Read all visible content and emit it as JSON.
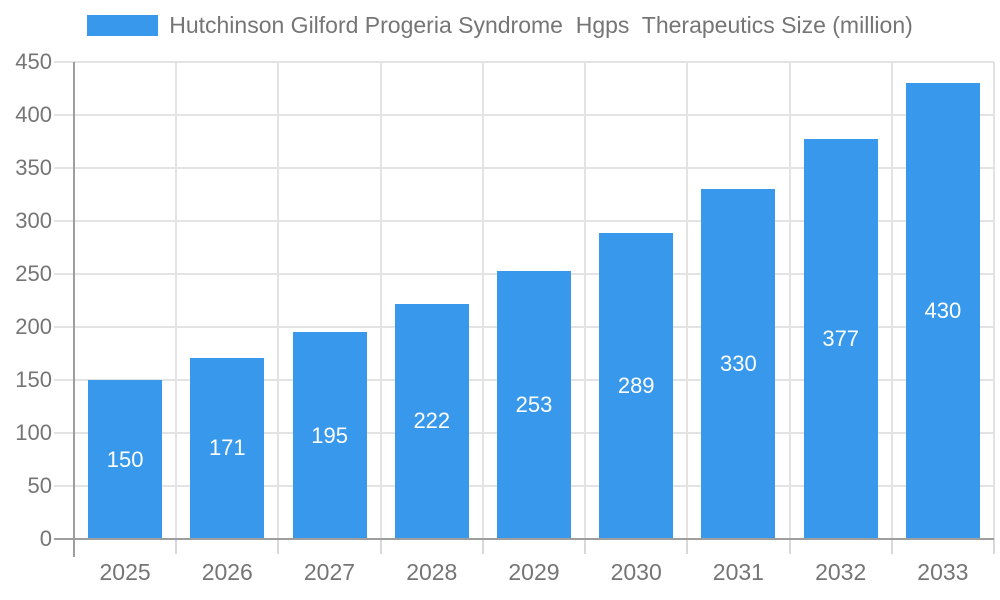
{
  "chart_data": {
    "type": "bar",
    "title": "",
    "legend": "Hutchinson Gilford Progeria Syndrome  Hgps  Therapeutics Size (million)",
    "categories": [
      "2025",
      "2026",
      "2027",
      "2028",
      "2029",
      "2030",
      "2031",
      "2032",
      "2033"
    ],
    "values": [
      150,
      171,
      195,
      222,
      253,
      289,
      330,
      377,
      430
    ],
    "xlabel": "",
    "ylabel": "",
    "ylim": [
      0,
      450
    ],
    "yticks": [
      0,
      50,
      100,
      150,
      200,
      250,
      300,
      350,
      400,
      450
    ],
    "grid": true,
    "legend_position": "top",
    "value_labels": "inside-center",
    "colors": {
      "bar": "#3899ec",
      "axis": "#9e9e9e",
      "grid": "#e3e3e3",
      "tick": "#d9d9d9",
      "text": "#757575",
      "bar_label": "#ffffff",
      "background": "#ffffff"
    }
  }
}
